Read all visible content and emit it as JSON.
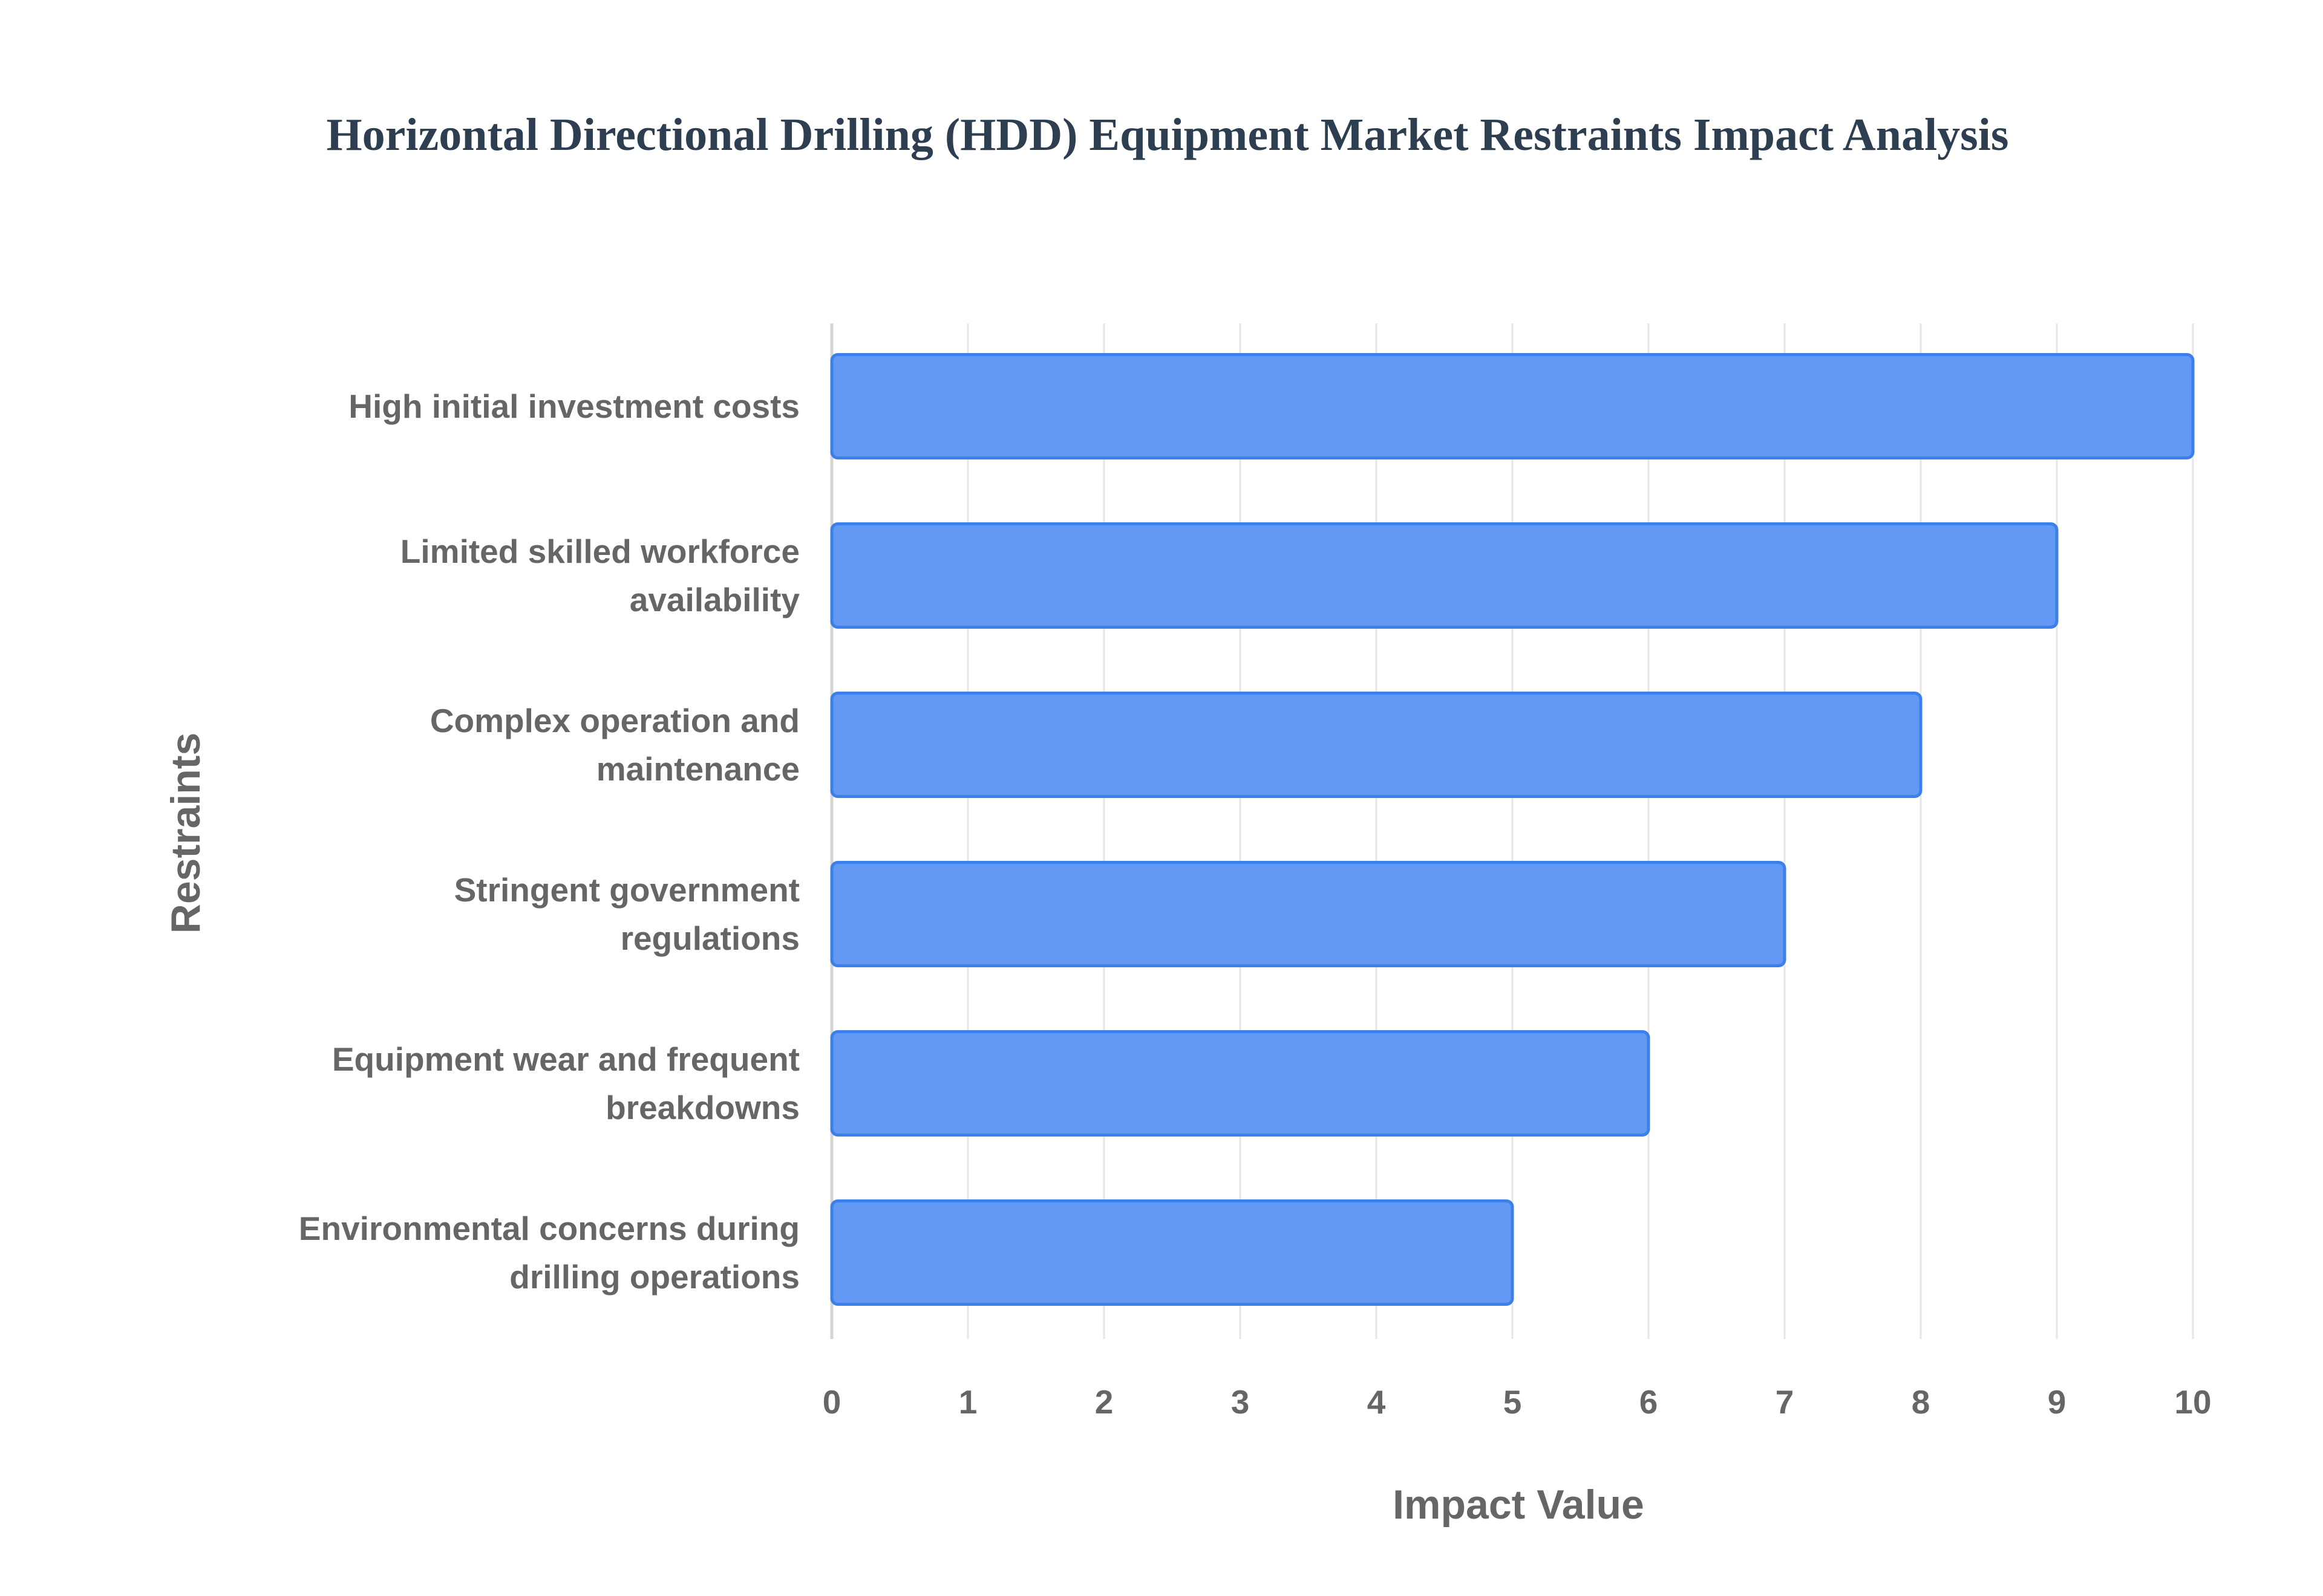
{
  "title": "Horizontal Directional Drilling (HDD) Equipment Market Restraints Impact Analysis",
  "chart_data": {
    "type": "bar",
    "orientation": "horizontal",
    "title": "Horizontal Directional Drilling (HDD) Equipment Market Restraints Impact Analysis",
    "categories": [
      [
        "High initial investment costs"
      ],
      [
        "Limited skilled workforce",
        "availability"
      ],
      [
        "Complex operation and",
        "maintenance"
      ],
      [
        "Stringent government",
        "regulations"
      ],
      [
        "Equipment wear and frequent",
        "breakdowns"
      ],
      [
        "Environmental concerns during",
        "drilling operations"
      ]
    ],
    "values": [
      10,
      9,
      8,
      7,
      6,
      5
    ],
    "xlabel": "Impact Value",
    "ylabel": "Restraints",
    "xlim": [
      0,
      10
    ],
    "xticks": [
      "0",
      "1",
      "2",
      "3",
      "4",
      "5",
      "6",
      "7",
      "8",
      "9",
      "10"
    ],
    "grid": true,
    "bar_color": "#6399f5",
    "bar_border_color": "#3b7fe8"
  }
}
